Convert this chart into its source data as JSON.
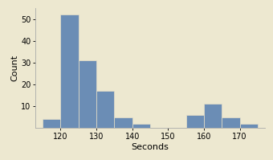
{
  "bin_edges": [
    115,
    120,
    125,
    130,
    135,
    140,
    145,
    150,
    155,
    160,
    165,
    170,
    175
  ],
  "counts": [
    4,
    52,
    31,
    17,
    5,
    2,
    0,
    0,
    6,
    11,
    5,
    2
  ],
  "bar_color": "#6b8db5",
  "bar_edge_color": "#e8e0c8",
  "bg_color": "#ede8d0",
  "xlabel": "Seconds",
  "ylabel": "Count",
  "yticks": [
    10,
    20,
    30,
    40,
    50
  ],
  "xticks": [
    120,
    130,
    140,
    150,
    160,
    170
  ],
  "ylim": [
    0,
    55
  ],
  "xlim": [
    113,
    177
  ],
  "xlabel_fontsize": 8,
  "ylabel_fontsize": 8,
  "tick_labelsize": 7
}
